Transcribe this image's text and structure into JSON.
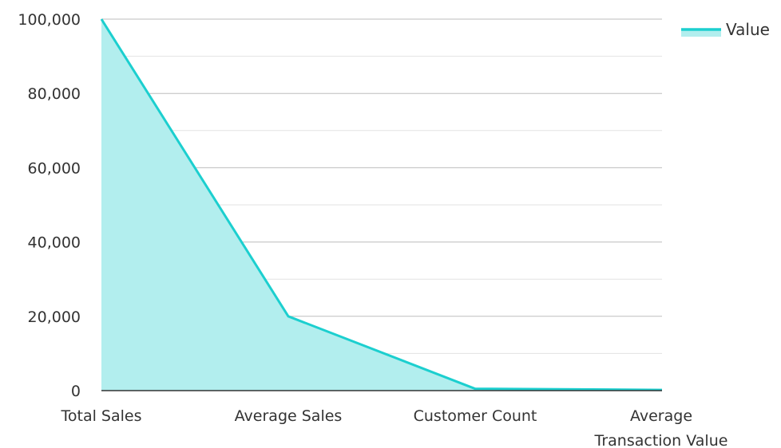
{
  "chart_data": {
    "type": "area",
    "categories": [
      "Total Sales",
      "Average Sales",
      "Customer Count",
      "Average Transaction Value"
    ],
    "category_label_lines": [
      [
        "Total Sales"
      ],
      [
        "Average Sales"
      ],
      [
        "Customer Count"
      ],
      [
        "Average",
        "Transaction Value"
      ]
    ],
    "series": [
      {
        "name": "Value",
        "values": [
          100000,
          20000,
          500,
          200
        ]
      }
    ],
    "y_ticks": [
      "0",
      "20,000",
      "40,000",
      "60,000",
      "80,000",
      "100,000"
    ],
    "ylim": [
      0,
      100000
    ],
    "y_tick_values": [
      0,
      20000,
      40000,
      60000,
      80000,
      100000
    ],
    "y_minor_values": [
      10000,
      30000,
      50000,
      70000,
      90000
    ],
    "grid": true,
    "legend_position": "top-right",
    "colors": {
      "line": "#1ccfcf",
      "fill": "#b2eeee",
      "grid_major": "#bdbdbd",
      "grid_minor": "#e3e3e3",
      "axis": "#333333"
    }
  }
}
